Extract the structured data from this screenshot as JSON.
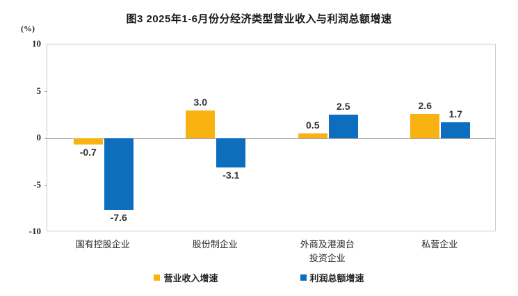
{
  "chart_data": {
    "type": "bar",
    "title": "图3  2025年1-6月份分经济类型营业收入与利润总额增速",
    "unit_label": "(%)",
    "categories": [
      "国有控股企业",
      "股份制企业",
      "外商及港澳台\n投资企业",
      "私营企业"
    ],
    "series": [
      {
        "name": "营业收入增速",
        "color": "#F8B312",
        "values": [
          -0.7,
          3.0,
          0.5,
          2.6
        ]
      },
      {
        "name": "利润总额增速",
        "color": "#0D6EBD",
        "values": [
          -7.6,
          -3.1,
          2.5,
          1.7
        ]
      }
    ],
    "ylim": [
      -10,
      10
    ],
    "yticks": [
      10,
      5,
      0,
      -5,
      -10
    ],
    "grid": "zero-line-only",
    "axis_border": true,
    "legend_position": "bottom"
  }
}
